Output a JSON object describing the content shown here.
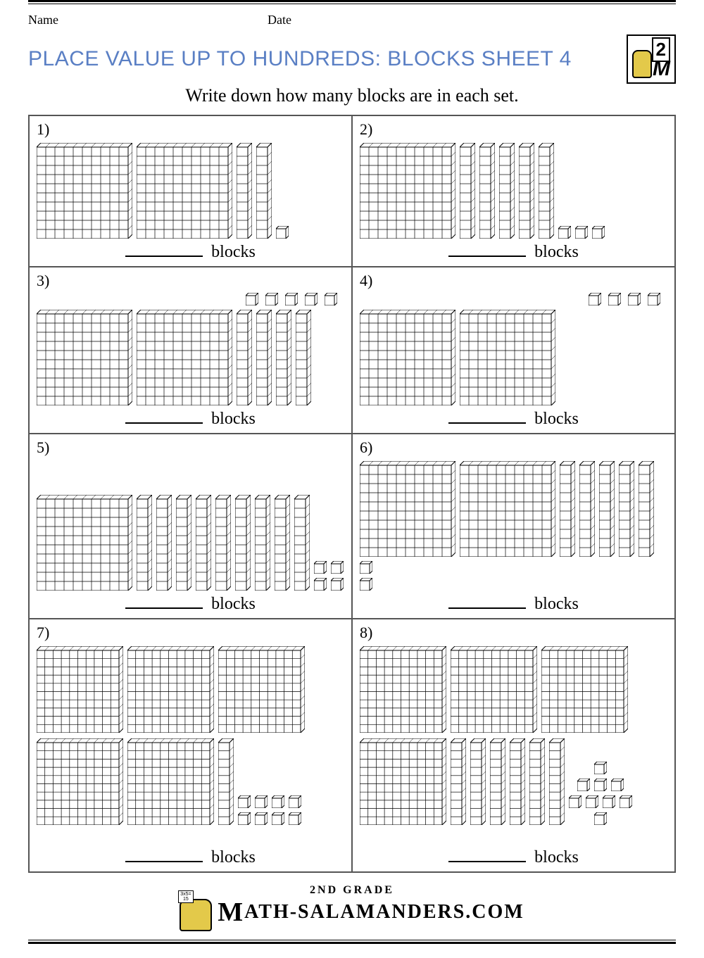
{
  "labels": {
    "name": "Name",
    "date": "Date",
    "title": "PLACE VALUE UP TO HUNDREDS: BLOCKS SHEET 4",
    "instruction": "Write down how many blocks are in each set.",
    "answer_unit": "blocks",
    "footer_line1": "2ND GRADE",
    "footer_line2": "ATH-SALAMANDERS.COM",
    "grade_badge": "2"
  },
  "colors": {
    "title": "#5a7fc4",
    "border": "#555555",
    "text": "#000000",
    "background": "#ffffff"
  },
  "shapes": {
    "hundred_size": 130,
    "ten_height": 130,
    "ten_width": 16,
    "one_size": 14,
    "depth": 6
  },
  "questions": [
    {
      "n": "1)",
      "hundreds": 2,
      "tens": 2,
      "ones": 1,
      "ones_above": false,
      "layout": "single"
    },
    {
      "n": "2)",
      "hundreds": 1,
      "tens": 5,
      "ones": 3,
      "ones_above": false,
      "layout": "single"
    },
    {
      "n": "3)",
      "hundreds": 2,
      "tens": 4,
      "ones": 5,
      "ones_above": true,
      "layout": "single"
    },
    {
      "n": "4)",
      "hundreds": 2,
      "tens": 0,
      "ones": 4,
      "ones_above": true,
      "layout": "single"
    },
    {
      "n": "5)",
      "hundreds": 1,
      "tens": 9,
      "ones": 4,
      "ones_above": false,
      "layout": "single",
      "ones_stack": [
        [
          2
        ],
        [
          2
        ]
      ]
    },
    {
      "n": "6)",
      "hundreds": 2,
      "tens": 5,
      "ones": 2,
      "ones_above": false,
      "layout": "single",
      "ones_stack": [
        [
          1
        ],
        [
          1
        ]
      ]
    },
    {
      "n": "7)",
      "hundreds": 5,
      "tens": 1,
      "ones": 8,
      "ones_above": false,
      "layout": "rows",
      "rows": [
        {
          "h": 3,
          "t": 0,
          "o": 0
        },
        {
          "h": 2,
          "t": 1,
          "o": 8
        }
      ],
      "ones_stack": [
        [
          4
        ],
        [
          4
        ]
      ]
    },
    {
      "n": "8)",
      "hundreds": 4,
      "tens": 6,
      "ones": 9,
      "ones_above": false,
      "layout": "rows",
      "rows": [
        {
          "h": 3,
          "t": 0,
          "o": 0
        },
        {
          "h": 1,
          "t": 6,
          "o": 9
        }
      ],
      "ones_stack": [
        [
          1
        ],
        [
          3
        ],
        [
          4
        ],
        [
          1
        ]
      ]
    }
  ]
}
